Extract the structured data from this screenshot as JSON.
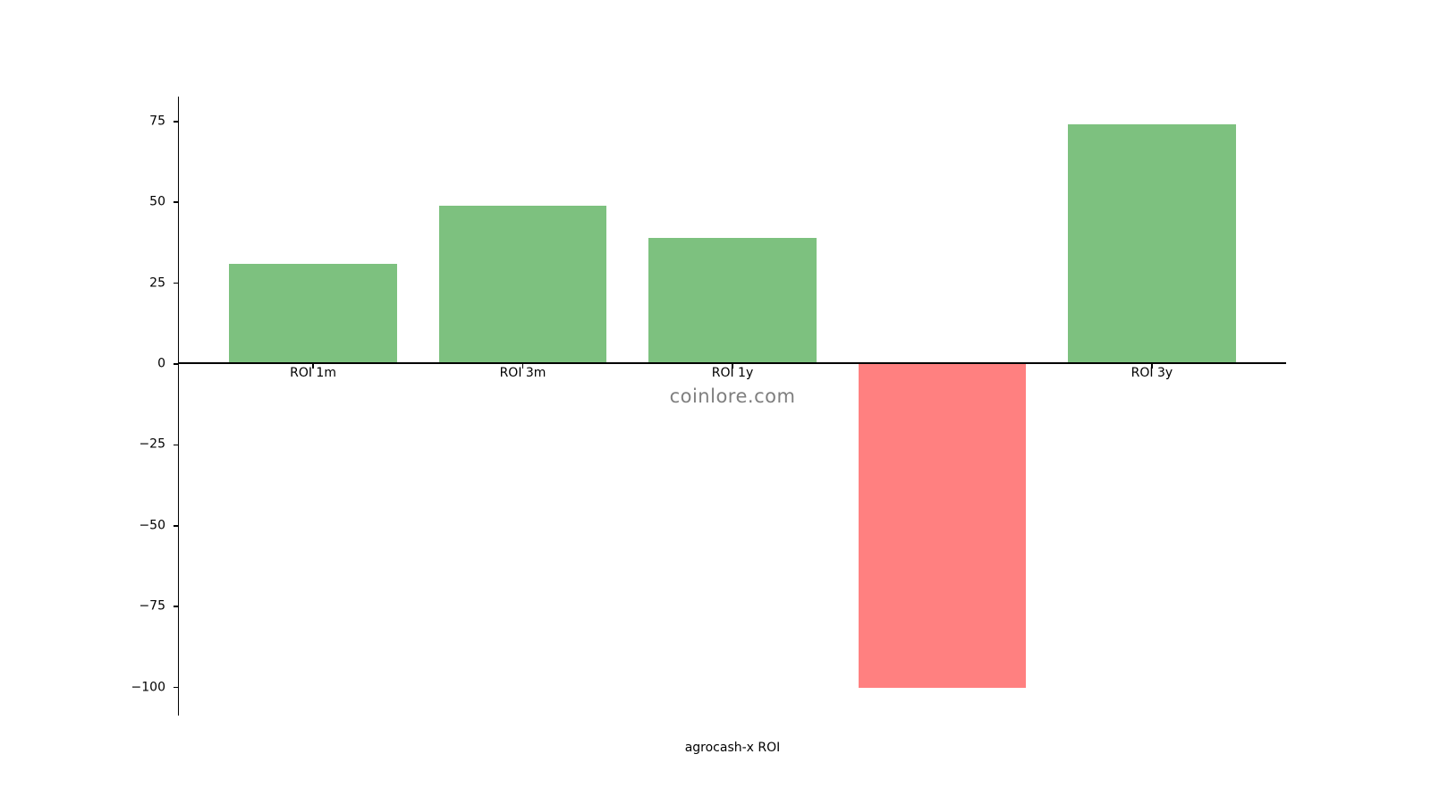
{
  "chart_data": {
    "type": "bar",
    "xlabel": "agrocash-x ROI",
    "watermark": "coinlore.com",
    "categories": [
      "ROI 1m",
      "ROI 3m",
      "ROI 1y",
      "",
      "ROI 3y"
    ],
    "values": [
      31,
      49,
      39,
      -100,
      74
    ],
    "yticks": [
      {
        "label": "75",
        "value": 75
      },
      {
        "label": "50",
        "value": 50
      },
      {
        "label": "25",
        "value": 25
      },
      {
        "label": "0",
        "value": 0
      },
      {
        "label": "−25",
        "value": -25
      },
      {
        "label": "−50",
        "value": -50
      },
      {
        "label": "−75",
        "value": -75
      },
      {
        "label": "−100",
        "value": -100
      }
    ],
    "ylim": [
      -108.7,
      82.7
    ],
    "grid": false,
    "legend": false,
    "colors": {
      "positive_bar": "#7dc17f",
      "negative_bar": "#ff8080",
      "axis": "#000000",
      "tick_text": "#000000",
      "watermark": "#7f7f7f",
      "background": "#ffffff"
    }
  }
}
